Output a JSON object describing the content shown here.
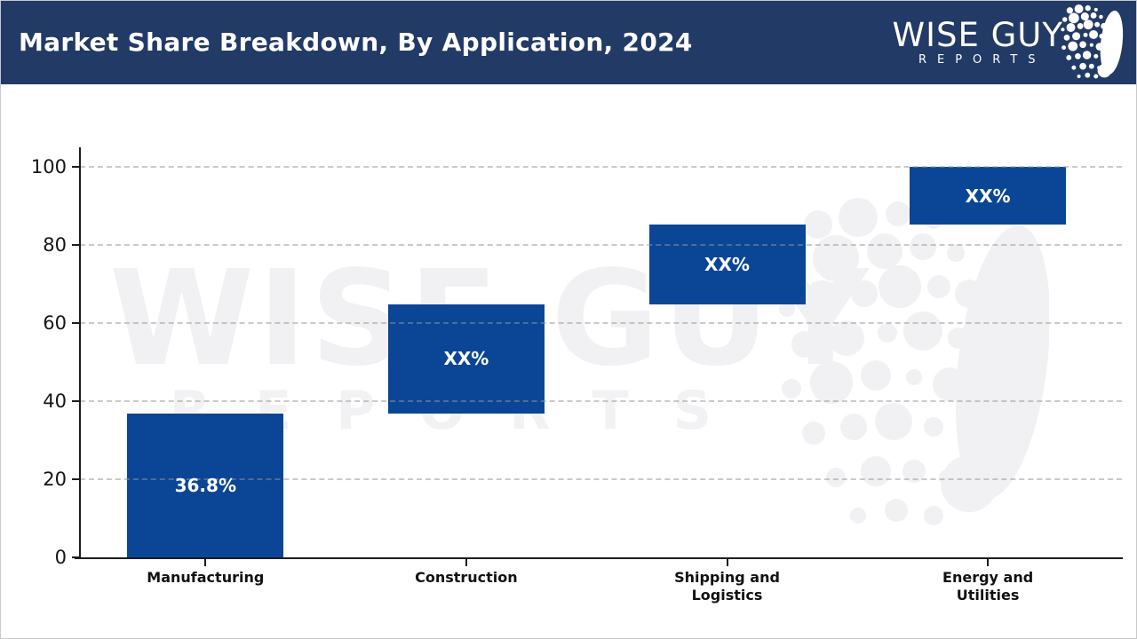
{
  "header": {
    "title": "Market Share Breakdown, By Application, 2024",
    "logo": {
      "name": "WISE GUY",
      "subtext": "REPORTS"
    }
  },
  "watermark": {
    "line1": "WISE GUY",
    "line2": "REPORTS"
  },
  "chart_data": {
    "type": "bar",
    "subtype": "waterfall",
    "title": "Market Share Breakdown, By Application, 2024",
    "xlabel": "",
    "ylabel": "",
    "ylim": [
      0,
      100
    ],
    "yticks": [
      0,
      20,
      40,
      60,
      80,
      100
    ],
    "grid": "horizontal-dashed",
    "legend": "none",
    "bar_color": "#0b4696",
    "bar_label_color": "#ffffff",
    "categories": [
      "Manufacturing",
      "Construction",
      "Shipping and Logistics",
      "Energy and Utilities"
    ],
    "category_label_lines": [
      [
        "Manufacturing"
      ],
      [
        "Construction"
      ],
      [
        "Shipping and",
        "Logistics"
      ],
      [
        "Energy and",
        "Utilities"
      ]
    ],
    "bars": [
      {
        "category": "Manufacturing",
        "start": 0,
        "end": 36.8,
        "value_label": "36.8%"
      },
      {
        "category": "Construction",
        "start": 36.8,
        "end": 64.8,
        "value_label": "XX%"
      },
      {
        "category": "Shipping and Logistics",
        "start": 64.8,
        "end": 85.2,
        "value_label": "XX%"
      },
      {
        "category": "Energy and Utilities",
        "start": 85.2,
        "end": 100,
        "value_label": "XX%"
      }
    ]
  }
}
